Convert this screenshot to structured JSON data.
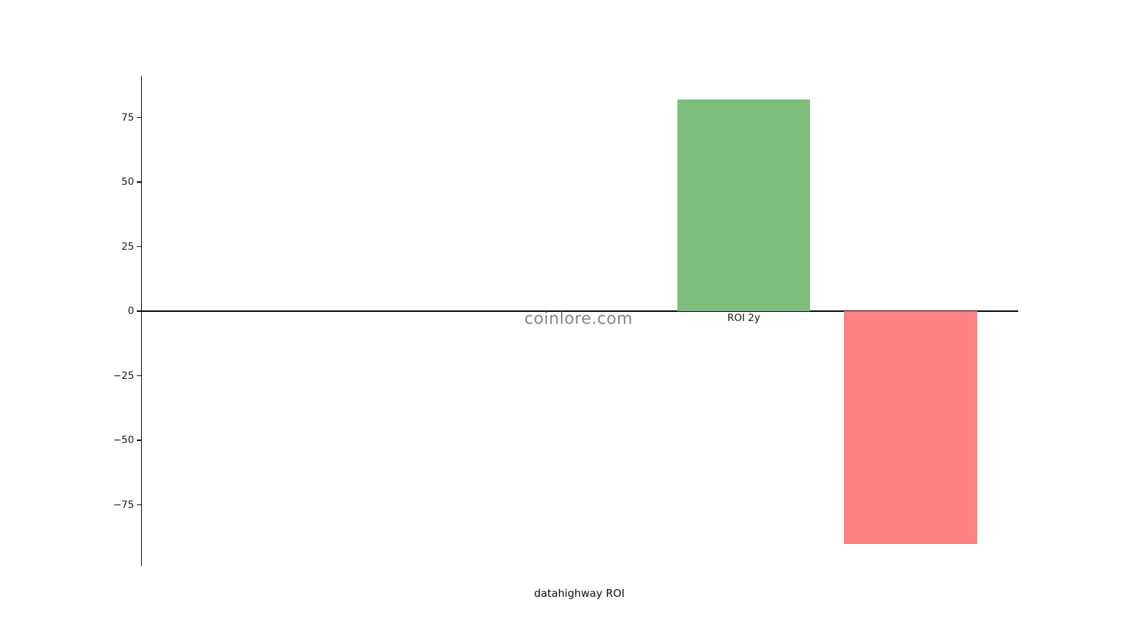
{
  "page": {
    "background_color": "#ffffff"
  },
  "watermark": {
    "text": "coinlore.com",
    "color": "#858585"
  },
  "chart_data": {
    "type": "bar",
    "title": "",
    "xlabel": "datahighway ROI",
    "ylabel": "",
    "categories": [
      "ROI 2y",
      ""
    ],
    "values": [
      82,
      -90
    ],
    "bar_colors": [
      "#7dbe7d",
      "#ff8181"
    ],
    "yticks": [
      {
        "label": "75",
        "value": 75
      },
      {
        "label": "50",
        "value": 50
      },
      {
        "label": "25",
        "value": 25
      },
      {
        "label": "0",
        "value": 0
      },
      {
        "label": "−25",
        "value": -25
      },
      {
        "label": "−50",
        "value": -50
      },
      {
        "label": "−75",
        "value": -75
      }
    ],
    "ylim": [
      -98.6,
      91
    ],
    "grid": false,
    "legend": false,
    "zero_line": true,
    "axis_color": "#000000"
  }
}
